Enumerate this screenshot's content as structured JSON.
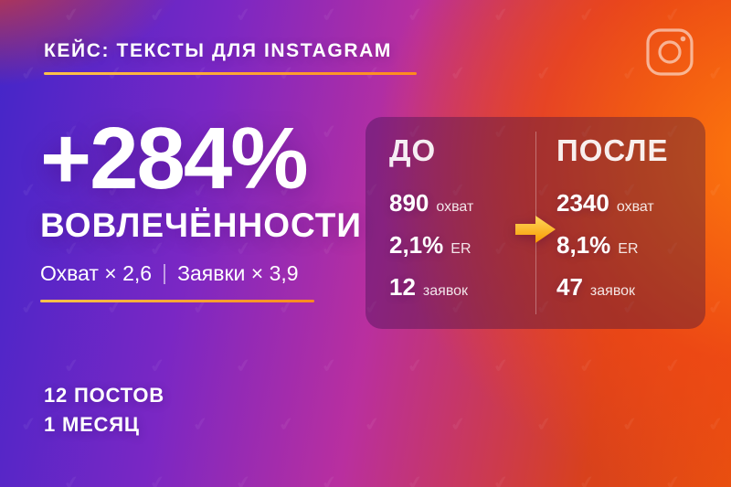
{
  "header": {
    "title": "КЕЙС: ТЕКСТЫ ДЛЯ INSTAGRAM"
  },
  "hero": {
    "percent": "+284%",
    "label": "ВОВЛЕЧЁННОСТИ",
    "multiplier_left": "Охват × 2,6",
    "multiplier_right": "Заявки × 3,9"
  },
  "comparison": {
    "before": {
      "title": "ДО",
      "rows": [
        {
          "value": "890",
          "unit": "охват"
        },
        {
          "value": "2,1%",
          "unit": "ER"
        },
        {
          "value": "12",
          "unit": "заявок"
        }
      ]
    },
    "after": {
      "title": "ПОСЛЕ",
      "rows": [
        {
          "value": "2340",
          "unit": "охват"
        },
        {
          "value": "8,1%",
          "unit": "ER"
        },
        {
          "value": "47",
          "unit": "заявок"
        }
      ]
    }
  },
  "footer": {
    "line1": "12 ПОСТОВ",
    "line2": "1 МЕСЯЦ"
  },
  "decor": {
    "pattern_glyph": "✔"
  },
  "colors": {
    "accent": "#ffb020",
    "underline_gradient_start": "#ffc24a",
    "underline_gradient_end": "#ff8a1e",
    "background_left": "#4326c9",
    "background_center": "#b92f9f",
    "background_right": "#e8500f",
    "panel_overlay": "rgba(44,12,70,0.35)"
  }
}
